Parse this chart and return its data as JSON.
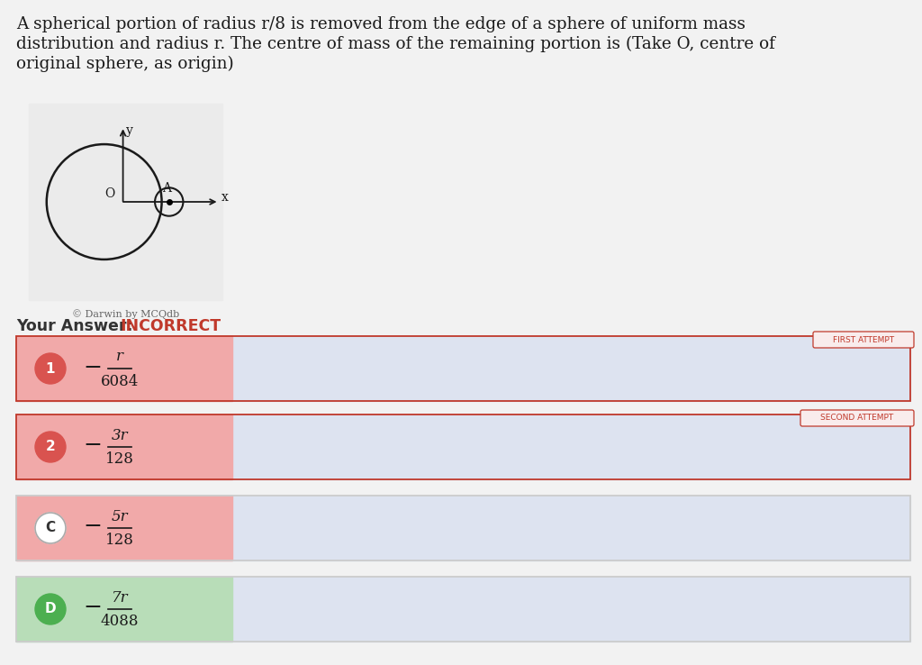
{
  "title_line1": "A spherical portion of radius r/8 is removed from the edge of a sphere of uniform mass",
  "title_line2": "distribution and radius r. The centre of mass of the remaining portion is (Take O, centre of",
  "title_line3": "original sphere, as origin)",
  "your_answer_label": "Your Answer:",
  "incorrect_text": "INCORRECT",
  "incorrect_color": "#c0392b",
  "background_color": "#f2f2f2",
  "options": [
    {
      "label": "1",
      "numerator": "r",
      "denominator": "6084",
      "circle_bg": "#d9534f",
      "circle_fg": "#ffffff",
      "left_bg": "#f1a9a9",
      "right_bg": "#dde3f0",
      "border_color": "#c0392b",
      "attempt": "FIRST ATTEMPT"
    },
    {
      "label": "2",
      "numerator": "3r",
      "denominator": "128",
      "circle_bg": "#d9534f",
      "circle_fg": "#ffffff",
      "left_bg": "#f1a9a9",
      "right_bg": "#dde3f0",
      "border_color": "#c0392b",
      "attempt": "SECOND ATTEMPT"
    },
    {
      "label": "C",
      "numerator": "5r",
      "denominator": "128",
      "circle_bg": "#ffffff",
      "circle_fg": "#333333",
      "left_bg": "#f1a9a9",
      "right_bg": "#dde3f0",
      "border_color": "#cccccc",
      "attempt": null
    },
    {
      "label": "D",
      "numerator": "7r",
      "denominator": "4088",
      "circle_bg": "#4caf50",
      "circle_fg": "#ffffff",
      "left_bg": "#b8ddb8",
      "right_bg": "#dde3f0",
      "border_color": "#cccccc",
      "attempt": null
    }
  ],
  "copyright_text": "© Darwin by MCQdb",
  "diagram_bg": "#ebebeb"
}
